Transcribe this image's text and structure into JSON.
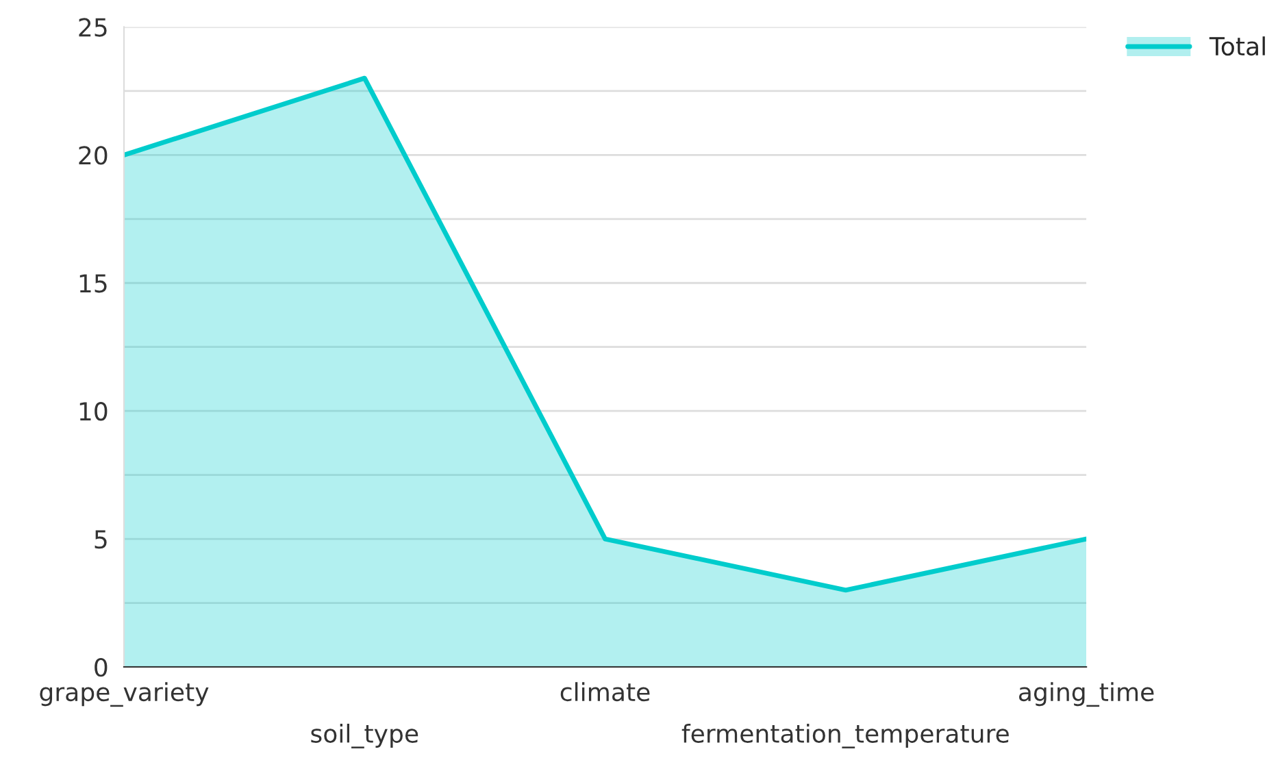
{
  "chart_data": {
    "type": "area",
    "categories": [
      "grape_variety",
      "soil_type",
      "climate",
      "fermentation_temperature",
      "aging_time"
    ],
    "series": [
      {
        "name": "Total",
        "color": "#00cccc",
        "values": [
          20,
          23,
          5,
          3,
          5
        ]
      }
    ],
    "ylim": [
      0,
      25
    ],
    "yticks": [
      0,
      {
        "value": 2.5,
        "label": null
      },
      5,
      {
        "value": 7.5,
        "label": null
      },
      10,
      {
        "value": 12.5,
        "label": null
      },
      15,
      {
        "value": 17.5,
        "label": null
      },
      20,
      {
        "value": 22.5,
        "label": null
      },
      25
    ],
    "grid": "y",
    "legend": "top right"
  }
}
